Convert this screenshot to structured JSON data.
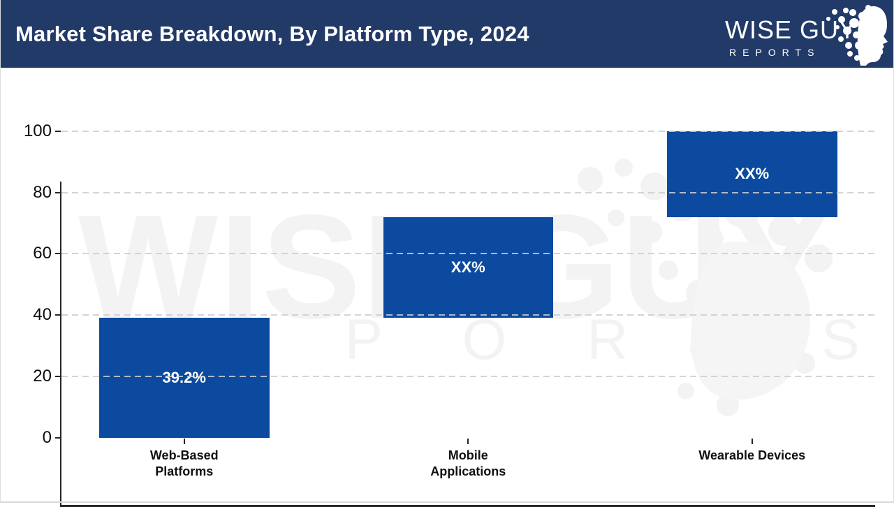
{
  "colors": {
    "header_bg": "#223a68",
    "bar": "#0b4a9e",
    "bar_label": "#ffffff",
    "grid": "#d2d2d2",
    "axis": "#262626",
    "watermark": "#f3f3f3"
  },
  "header": {
    "title": "Market Share Breakdown, By Platform Type, 2024",
    "logo": {
      "line1": "WISE GUY",
      "line2": "R E P O R T S"
    }
  },
  "watermark": {
    "line1": "WISE GUY",
    "line2": "R E P O R T S"
  },
  "chart_data": {
    "type": "bar",
    "subtype": "waterfall",
    "title": "Market Share Breakdown, By Platform Type, 2024",
    "categories": [
      "Web-Based Platforms",
      "Mobile Applications",
      "Wearable Devices"
    ],
    "category_lines": [
      [
        "Web-Based",
        "Platforms"
      ],
      [
        "Mobile",
        "Applications"
      ],
      [
        "Wearable Devices"
      ]
    ],
    "segments": [
      {
        "category": "Web-Based Platforms",
        "start": 0,
        "end": 39.2,
        "label": "39.2%"
      },
      {
        "category": "Mobile Applications",
        "start": 39.2,
        "end": 72,
        "label": "XX%"
      },
      {
        "category": "Wearable Devices",
        "start": 72,
        "end": 100,
        "label": "XX%"
      }
    ],
    "yticks": [
      0,
      20,
      40,
      60,
      80,
      100
    ],
    "ylim": [
      0,
      105
    ],
    "xlabel": "",
    "ylabel": "",
    "grid": "horizontal-dashed",
    "legend": "none"
  }
}
